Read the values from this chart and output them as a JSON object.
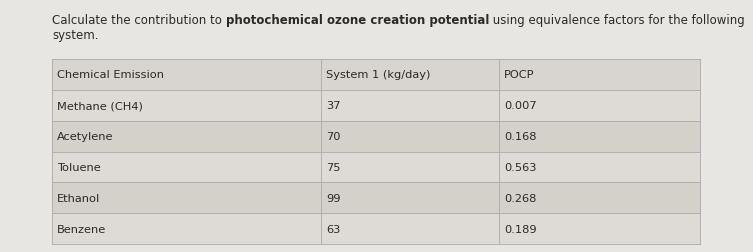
{
  "title_normal1": "Calculate the contribution to ",
  "title_bold": "photochemical ozone creation potential",
  "title_normal2": " using equivalence factors for the following",
  "title_line2": "system.",
  "headers": [
    "Chemical Emission",
    "System 1 (kg/day)",
    "POCP"
  ],
  "rows": [
    [
      "Methane (CH4)",
      "37",
      "0.007"
    ],
    [
      "Acetylene",
      "70",
      "0.168"
    ],
    [
      "Toluene",
      "75",
      "0.563"
    ],
    [
      "Ethanol",
      "99",
      "0.268"
    ],
    [
      "Benzene",
      "63",
      "0.189"
    ]
  ],
  "bg_color": "#e8e6e2",
  "table_bg": "#e0ddd8",
  "border_color": "#aaaaaa",
  "text_color": "#2a2a2a",
  "title_fontsize": 8.5,
  "cell_fontsize": 8.2,
  "col_splits_rel": [
    0.415,
    0.69
  ]
}
